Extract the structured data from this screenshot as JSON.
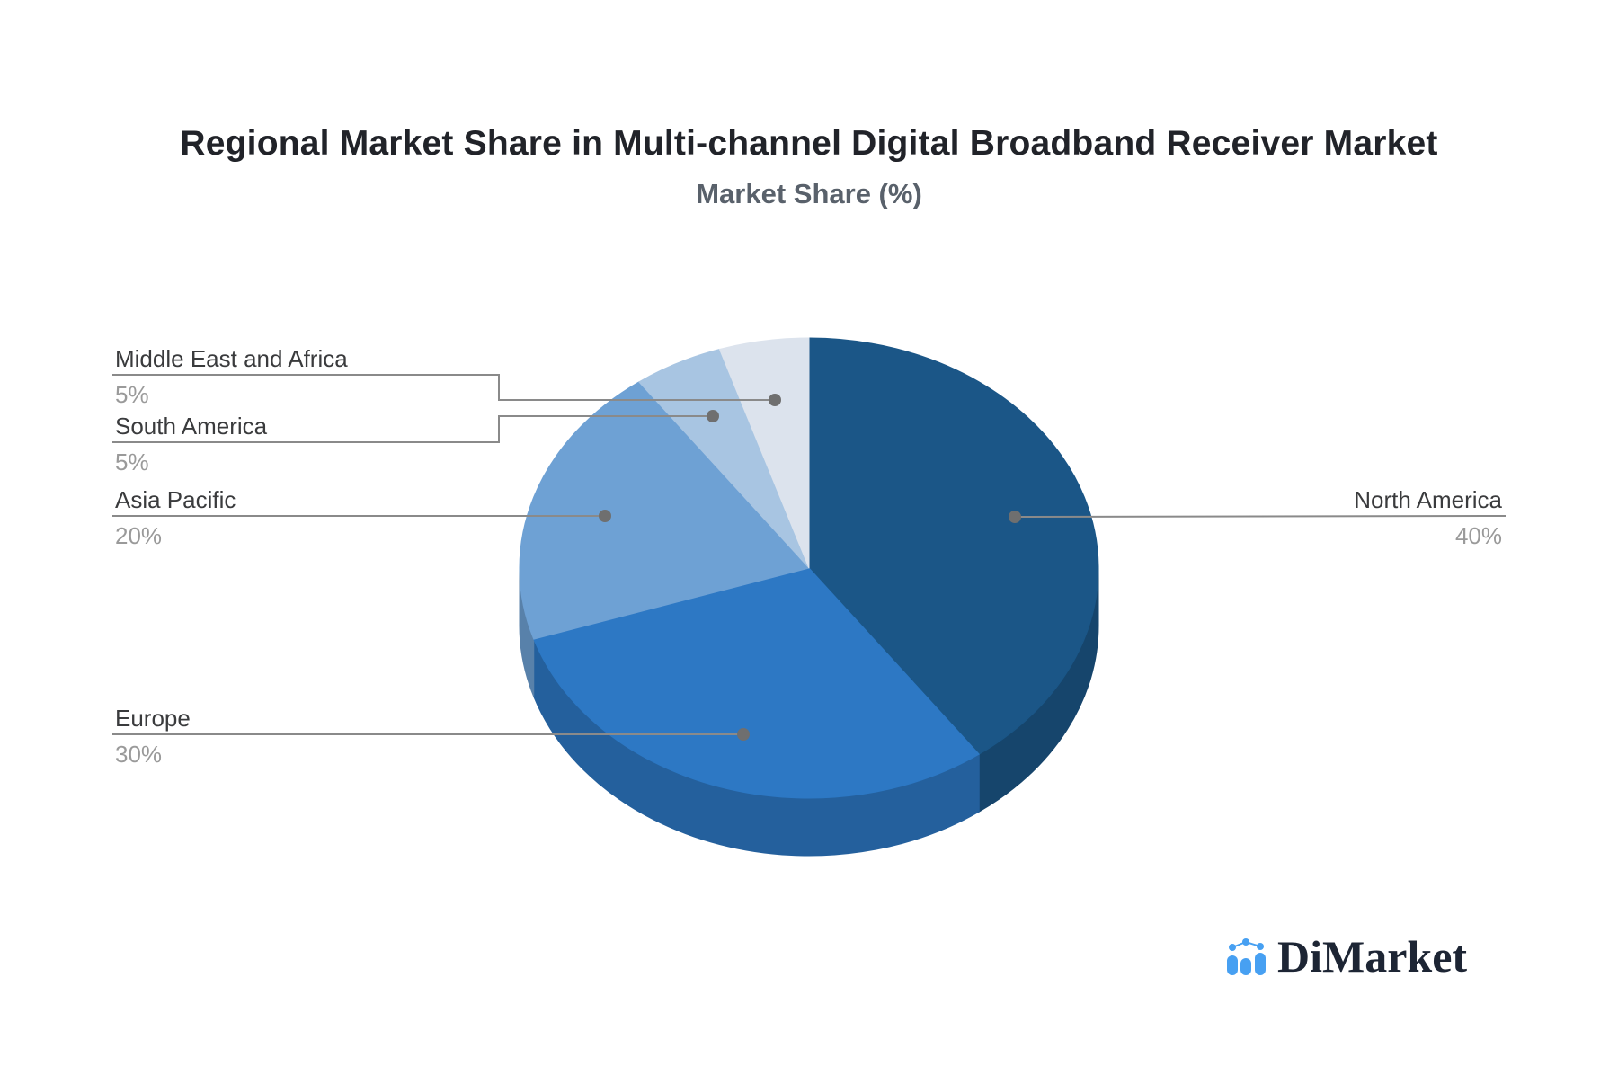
{
  "title": "Regional Market Share in Multi-channel Digital Broadband Receiver Market",
  "subtitle": "Market Share (%)",
  "logo": {
    "text": "DiMarket",
    "icon": "bar-line-chart-icon",
    "icon_color": "#47a0f2",
    "text_color": "#1d2534"
  },
  "chart_data": {
    "type": "pie",
    "title": "Regional Market Share in Multi-channel Digital Broadband Receiver Market",
    "subtitle": "Market Share (%)",
    "unit": "%",
    "start_angle": "top",
    "direction": "clockwise",
    "effect_3d": true,
    "legend_position": "callout-labels",
    "series": [
      {
        "label": "North America",
        "value": 40,
        "display": "40%",
        "color": "#1b5687",
        "callout_side": "right"
      },
      {
        "label": "Europe",
        "value": 30,
        "display": "30%",
        "color": "#2d78c4",
        "callout_side": "left"
      },
      {
        "label": "Asia Pacific",
        "value": 20,
        "display": "20%",
        "color": "#6ea1d4",
        "callout_side": "left"
      },
      {
        "label": "South America",
        "value": 5,
        "display": "5%",
        "color": "#a8c5e2",
        "callout_side": "left"
      },
      {
        "label": "Middle East and Africa",
        "value": 5,
        "display": "5%",
        "color": "#dce3ed",
        "callout_side": "left"
      }
    ],
    "label_color": "#3a3b3d",
    "value_color": "#9a9a9a",
    "leader_line_color": "#8a8a8a",
    "leader_dot_color": "#6f6f6f",
    "background_color": "#ffffff"
  }
}
